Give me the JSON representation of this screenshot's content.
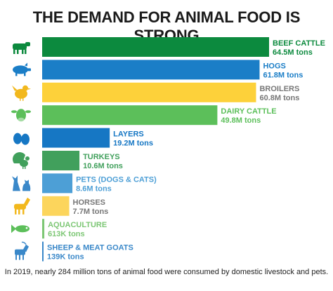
{
  "chart_data": {
    "type": "bar",
    "orientation": "horizontal",
    "title": "THE DEMAND FOR ANIMAL FOOD IS STRONG",
    "caption": "In 2019, nearly 284 million tons of animal food were consumed by domestic livestock and pets.",
    "unit": "million tons",
    "xlim": [
      0,
      64.5
    ],
    "grid": false,
    "legend": "none",
    "categories": [
      "BEEF CATTLE",
      "HOGS",
      "BROILERS",
      "DAIRY CATTLE",
      "LAYERS",
      "TURKEYS",
      "PETS (DOGS & CATS)",
      "HORSES",
      "AQUACULTURE",
      "SHEEP & MEAT GOATS"
    ],
    "values": [
      64.5,
      61.8,
      60.8,
      49.8,
      19.2,
      10.6,
      8.6,
      7.7,
      0.613,
      0.139
    ],
    "value_labels": [
      "64.5M tons",
      "61.8M tons",
      "60.8M tons",
      "49.8M tons",
      "19.2M tons",
      "10.6M tons",
      "8.6M tons",
      "7.7M tons",
      "613K tons",
      "139K tons"
    ],
    "icons": [
      "cow-icon",
      "hog-icon",
      "chicken-icon",
      "dairy-cow-icon",
      "eggs-icon",
      "turkey-icon",
      "dog-cat-icon",
      "horse-icon",
      "fish-icon",
      "goat-icon"
    ],
    "colors": [
      "#0c8a3e",
      "#1b7ec7",
      "#fdd13a",
      "#5cbf5a",
      "#1677c4",
      "#41a05c",
      "#4d9fd6",
      "#fcd55c",
      "#7dc775",
      "#3a88c9"
    ],
    "label_colors": [
      "#0c8a3e",
      "#1b7ec7",
      "#777777",
      "#5cbf5a",
      "#1677c4",
      "#41a05c",
      "#4d9fd6",
      "#777777",
      "#7dc775",
      "#3a88c9"
    ],
    "icon_colors": [
      "#0c8a3e",
      "#1b7ec7",
      "#f2b81d",
      "#5cbf5a",
      "#1677c4",
      "#41a05c",
      "#3a88c9",
      "#f2b81d",
      "#5cbf5a",
      "#3a88c9"
    ]
  }
}
